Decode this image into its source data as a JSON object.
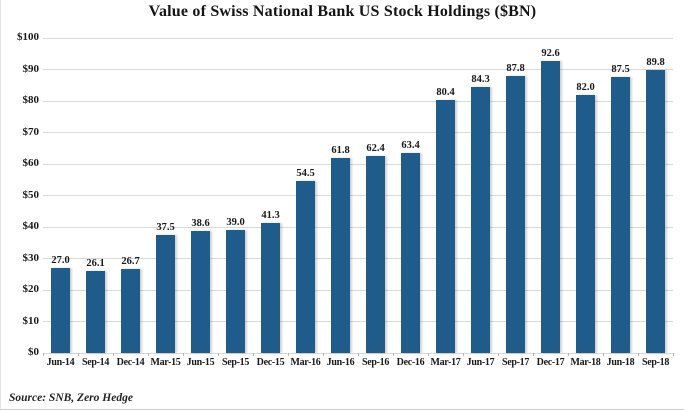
{
  "title": "Value of Swiss National Bank US Stock Holdings ($BN)",
  "source": "Source: SNB, Zero Hedge",
  "colors": {
    "bar": "#1f5c8b",
    "gridline": "#d9d9d9",
    "text": "#1a1a1a"
  },
  "chart_data": {
    "type": "bar",
    "title": "Value of Swiss National Bank US Stock Holdings ($BN)",
    "xlabel": "",
    "ylabel": "",
    "categories": [
      "Jun-14",
      "Sep-14",
      "Dec-14",
      "Mar-15",
      "Jun-15",
      "Sep-15",
      "Dec-15",
      "Mar-16",
      "Jun-16",
      "Sep-16",
      "Dec-16",
      "Mar-17",
      "Jun-17",
      "Sep-17",
      "Dec-17",
      "Mar-18",
      "Jun-18",
      "Sep-18"
    ],
    "values": [
      27.0,
      26.1,
      26.7,
      37.5,
      38.6,
      39.0,
      41.3,
      54.5,
      61.8,
      62.4,
      63.4,
      80.4,
      84.3,
      87.8,
      92.6,
      82.0,
      87.5,
      89.8
    ],
    "value_labels": [
      "27.0",
      "26.1",
      "26.7",
      "37.5",
      "38.6",
      "39.0",
      "41.3",
      "54.5",
      "61.8",
      "62.4",
      "63.4",
      "80.4",
      "84.3",
      "87.8",
      "92.6",
      "82.0",
      "87.5",
      "89.8"
    ],
    "ylim": [
      0,
      100
    ],
    "ytick_step": 10,
    "ytick_labels": [
      "$0",
      "$10",
      "$20",
      "$30",
      "$40",
      "$50",
      "$60",
      "$70",
      "$80",
      "$90",
      "$100"
    ],
    "grid": "horizontal",
    "legend": "none",
    "annotation": "Source: SNB, Zero Hedge"
  }
}
